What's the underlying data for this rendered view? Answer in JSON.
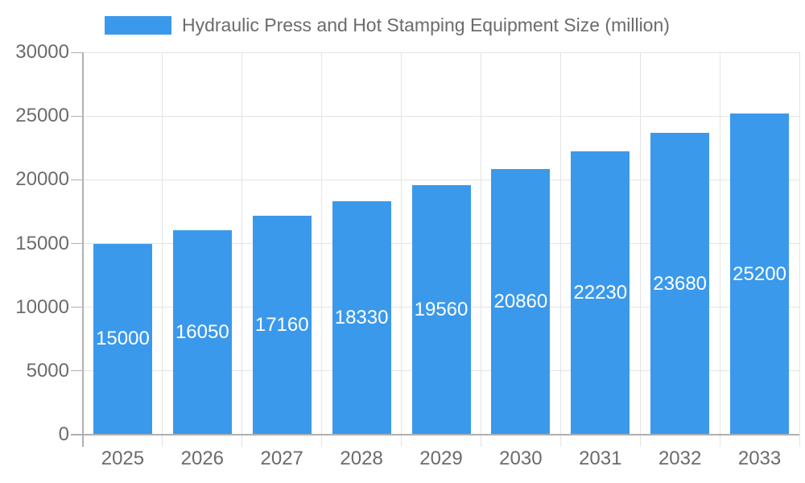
{
  "legend": {
    "label": "Hydraulic Press and Hot Stamping Equipment Size (million)"
  },
  "colors": {
    "bar": "#3b99ec",
    "bar_label": "#ffffff",
    "axis_text": "#6b6b6b",
    "legend_text": "#6b6b6b",
    "gridline": "#e4e4e4",
    "axis_line": "#b0b0b0",
    "background": "#ffffff"
  },
  "chart_data": {
    "type": "bar",
    "title": "Hydraulic Press and Hot Stamping Equipment Size (million)",
    "categories": [
      "2025",
      "2026",
      "2027",
      "2028",
      "2029",
      "2030",
      "2031",
      "2032",
      "2033"
    ],
    "values": [
      15000,
      16050,
      17160,
      18330,
      19560,
      20860,
      22230,
      23680,
      25200
    ],
    "series": [
      {
        "name": "Hydraulic Press and Hot Stamping Equipment Size (million)",
        "values": [
          15000,
          16050,
          17160,
          18330,
          19560,
          20860,
          22230,
          23680,
          25200
        ]
      }
    ],
    "bar_labels": [
      "15000",
      "16050",
      "17160",
      "18330",
      "19560",
      "20860",
      "22230",
      "23680",
      "25200"
    ],
    "xlabel": "",
    "ylabel": "",
    "ylim": [
      0,
      30000
    ],
    "yticks": [
      0,
      5000,
      10000,
      15000,
      20000,
      25000,
      30000
    ],
    "ytick_labels": [
      "0",
      "5000",
      "10000",
      "15000",
      "20000",
      "25000",
      "30000"
    ],
    "grid": true,
    "vertical_gridlines": true,
    "legend_position": "top",
    "bar_label_position": "inside-center"
  }
}
